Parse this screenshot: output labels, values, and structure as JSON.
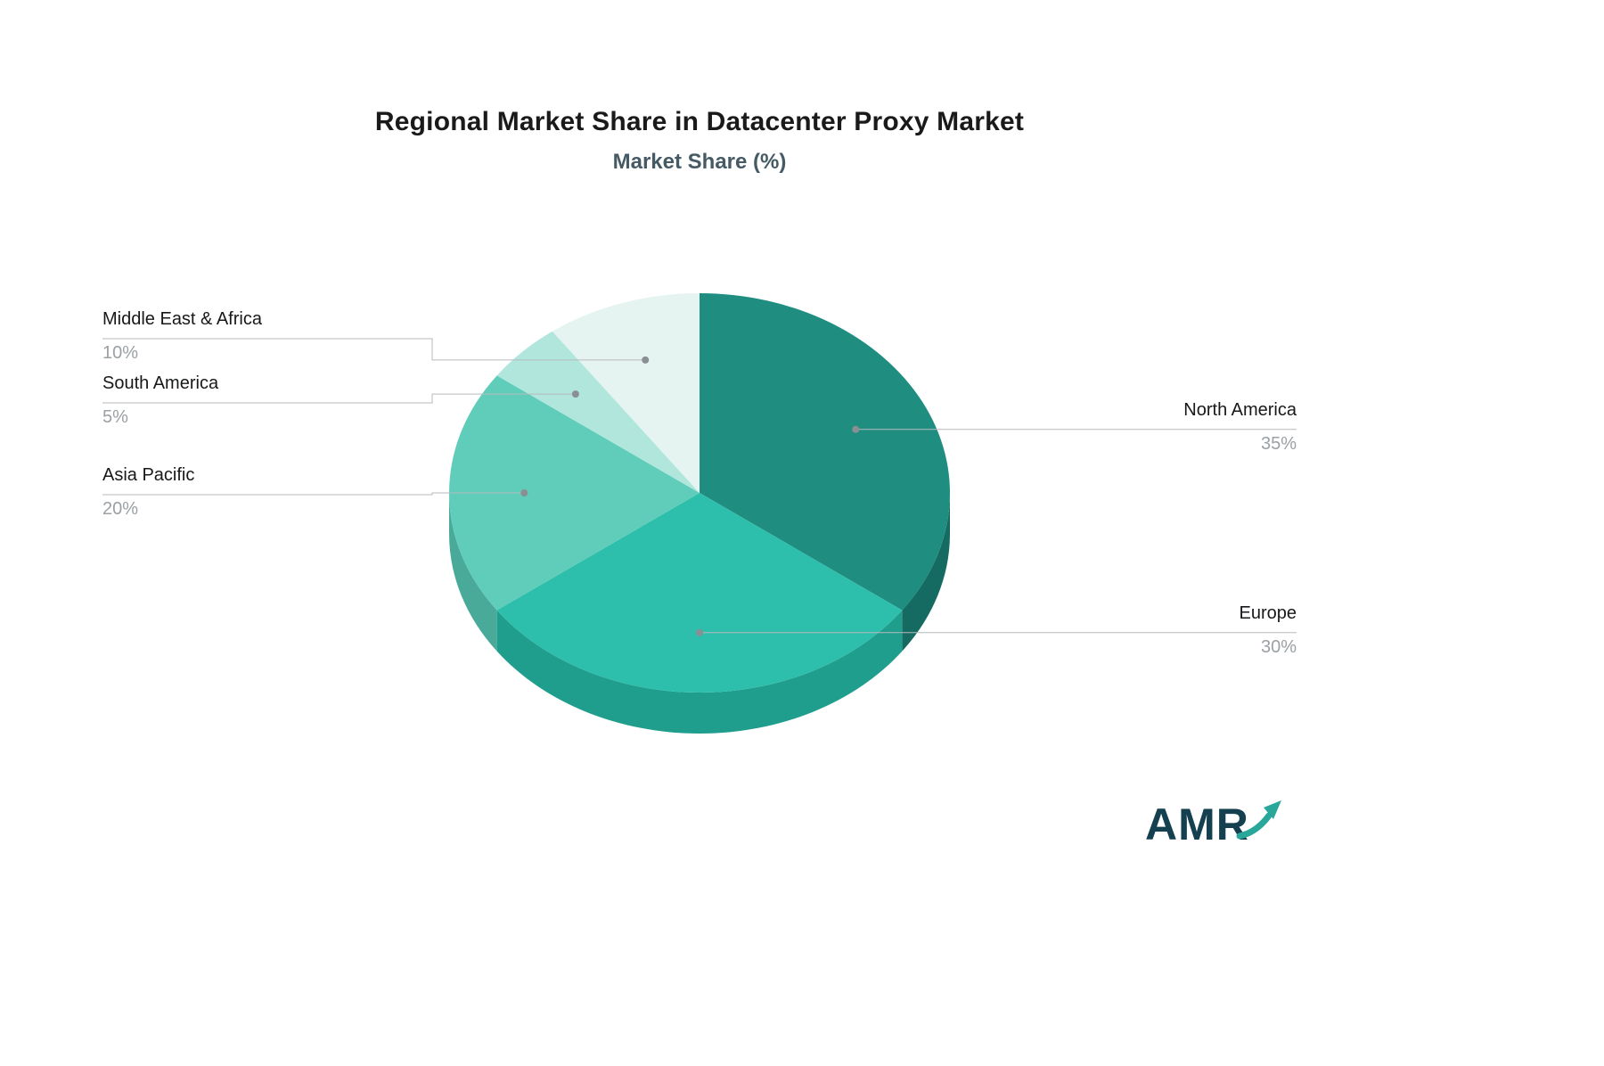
{
  "title": "Regional Market Share in Datacenter Proxy Market",
  "subtitle": "Market Share (%)",
  "logo": {
    "text": "AMR",
    "color": "#14404f",
    "arrow_color": "#2aa79b"
  },
  "chart_data": {
    "type": "pie",
    "style": "3d",
    "title": "Regional Market Share in Datacenter Proxy Market",
    "subtitle": "Market Share (%)",
    "unit": "%",
    "categories": [
      "North America",
      "Europe",
      "Asia Pacific",
      "South America",
      "Middle East & Africa"
    ],
    "values": [
      35,
      30,
      20,
      5,
      10
    ],
    "value_labels": [
      "35%",
      "30%",
      "20%",
      "5%",
      "10%"
    ],
    "colors": [
      "#1f8e81",
      "#2dbfab",
      "#60cdba",
      "#b0e6dc",
      "#e5f4f1"
    ],
    "side_colors": [
      "#156b61",
      "#1f9e8d",
      "#49aa9a",
      "#8fcac0",
      "#c6dfda"
    ],
    "start_angle_deg": 0,
    "direction": "clockwise",
    "legend_position": "none",
    "leader_line_color": "#b6babd",
    "leader_dot_color": "#8a8f93"
  }
}
